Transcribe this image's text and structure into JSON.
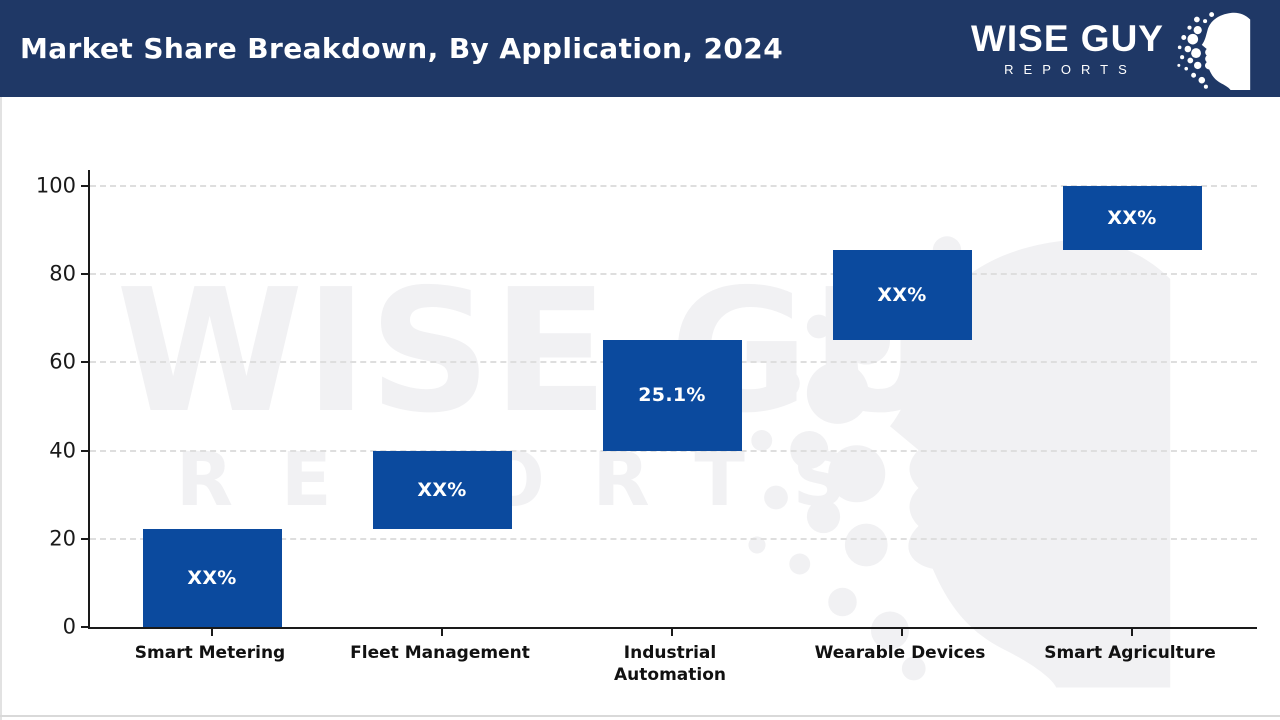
{
  "header": {
    "title": "Market Share Breakdown, By Application, 2024",
    "logo": {
      "name": "WISE GUY",
      "subtitle": "REPORTS"
    }
  },
  "watermark": {
    "line1": "WISE GUY",
    "line2": "REPORTS"
  },
  "chart_data": {
    "type": "bar",
    "subtype": "waterfall",
    "title": "Market Share Breakdown, By Application, 2024",
    "categories": [
      "Smart Metering",
      "Fleet Management",
      "Industrial Automation",
      "Wearable Devices",
      "Smart Agriculture"
    ],
    "bar_bottoms": [
      0,
      22.2,
      40.0,
      65.1,
      85.5
    ],
    "bar_tops": [
      22.2,
      39.8,
      65.1,
      85.5,
      100
    ],
    "bar_labels": [
      "XX%",
      "XX%",
      "25.1%",
      "XX%",
      "XX%"
    ],
    "xlabel": "",
    "ylabel": "",
    "ylim": [
      0,
      100
    ],
    "yticks": [
      0,
      20,
      40,
      60,
      80,
      100
    ],
    "bar_color": "#0b4a9e",
    "grid": "dashed-horizontal",
    "legend": "none"
  }
}
